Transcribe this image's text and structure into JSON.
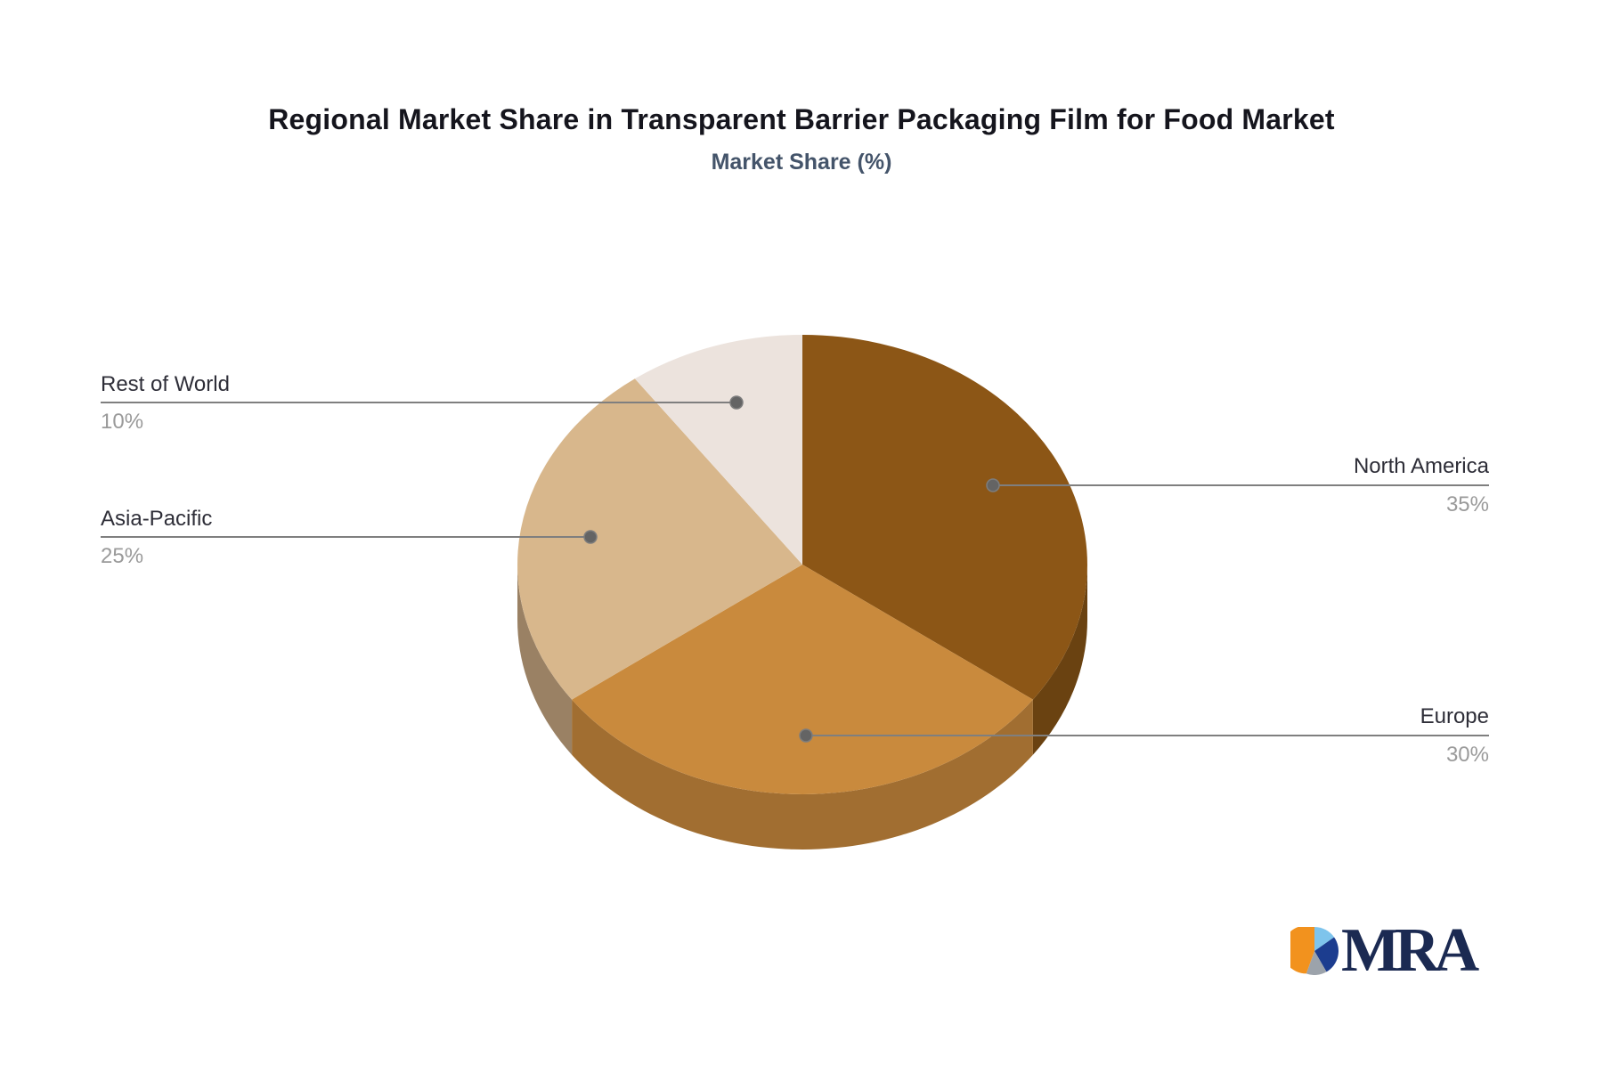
{
  "title": "Regional Market Share in Transparent Barrier Packaging Film for Food Market",
  "subtitle": "Market Share (%)",
  "chart_data": {
    "type": "pie",
    "style": "3d-depth",
    "title": "Regional Market Share in Transparent Barrier Packaging Film for Food Market",
    "subtitle": "Market Share (%)",
    "categories": [
      "North America",
      "Europe",
      "Asia-Pacific",
      "Rest of World"
    ],
    "values": [
      35,
      30,
      25,
      10
    ],
    "unit": "%",
    "start_angle_deg": 0,
    "direction": "clockwise",
    "slice_colors": [
      "#8C5616",
      "#C98A3D",
      "#D8B78C",
      "#ECE3DD"
    ],
    "side_colors": [
      "#6A4211",
      "#A16E31",
      "#9A8164",
      "#D9CFC8"
    ],
    "leader_line_color": "#7f7f7f",
    "leader_dot_color": "#646464",
    "legend_position": "none",
    "labels_layout": "callout-lines",
    "background": "#FFFFFF"
  },
  "callouts": {
    "rest_of_world": {
      "label": "Rest of World",
      "value": "10%"
    },
    "asia_pacific": {
      "label": "Asia-Pacific",
      "value": "25%"
    },
    "north_america": {
      "label": "North America",
      "value": "35%"
    },
    "europe": {
      "label": "Europe",
      "value": "30%"
    }
  },
  "logo": {
    "text": "MRA",
    "text_color": "#1B2A52",
    "icon": "pie-chart-icon",
    "icon_colors": {
      "orange": "#F2921E",
      "light_blue": "#7EC4EC",
      "navy": "#1C3D8F",
      "gray": "#9CA3AB"
    }
  }
}
